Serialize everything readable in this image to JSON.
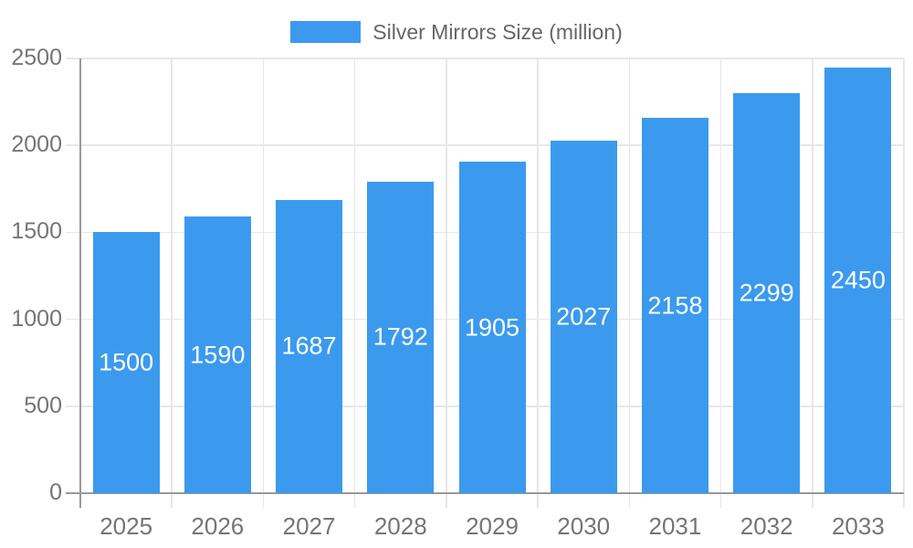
{
  "chart_data": {
    "type": "bar",
    "title": "",
    "legend": {
      "label": "Silver Mirrors Size (million)",
      "position": "top"
    },
    "categories": [
      "2025",
      "2026",
      "2027",
      "2028",
      "2029",
      "2030",
      "2031",
      "2032",
      "2033"
    ],
    "values": [
      1500,
      1590,
      1687,
      1792,
      1905,
      2027,
      2158,
      2299,
      2450
    ],
    "series": [
      {
        "name": "Silver Mirrors Size (million)",
        "values": [
          1500,
          1590,
          1687,
          1792,
          1905,
          2027,
          2158,
          2299,
          2450
        ]
      }
    ],
    "xlabel": "",
    "ylabel": "",
    "ylim": [
      0,
      2500
    ],
    "yticks": [
      0,
      500,
      1000,
      1500,
      2000,
      2500
    ],
    "grid": true,
    "bar_value_labels": true,
    "colors": {
      "bar": "#3B9AEE",
      "bar_label": "#FFFFFF",
      "axis_text": "#757575",
      "legend_text": "#666666",
      "grid_line": "#E7E7E7",
      "axis_line": "#999999",
      "background": "#FFFFFF"
    }
  }
}
